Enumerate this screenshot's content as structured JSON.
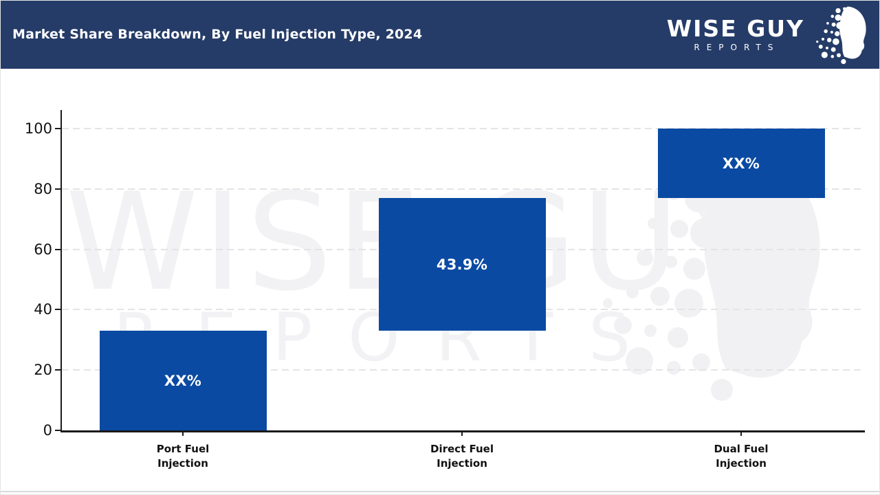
{
  "header": {
    "title": "Market Share Breakdown, By Fuel Injection Type, 2024",
    "bg_color": "#253c68",
    "logo_line1": "WISE GUY",
    "logo_line2": "REPORTS"
  },
  "watermark": {
    "line1": "WISE GUY",
    "line2": "REPORTS"
  },
  "chart_data": {
    "type": "bar",
    "variant": "floating-waterfall",
    "title": "Market Share Breakdown, By Fuel Injection Type, 2024",
    "categories": [
      "Port Fuel Injection",
      "Direct Fuel Injection",
      "Dual Fuel Injection"
    ],
    "bars": [
      {
        "category": "Port Fuel Injection",
        "start": 0,
        "end": 33,
        "label": "XX%"
      },
      {
        "category": "Direct Fuel Injection",
        "start": 33,
        "end": 76.9,
        "label": "43.9%"
      },
      {
        "category": "Dual Fuel Injection",
        "start": 76.9,
        "end": 100,
        "label": "XX%"
      }
    ],
    "xlabel": "",
    "ylabel": "",
    "yticks": [
      0,
      20,
      40,
      60,
      80,
      100
    ],
    "ylim": [
      0,
      106
    ],
    "bar_color": "#0b4aa2",
    "grid": "horizontal-dashed",
    "gridline_color": "#e4e4e6",
    "header_navy": "#253c68"
  }
}
